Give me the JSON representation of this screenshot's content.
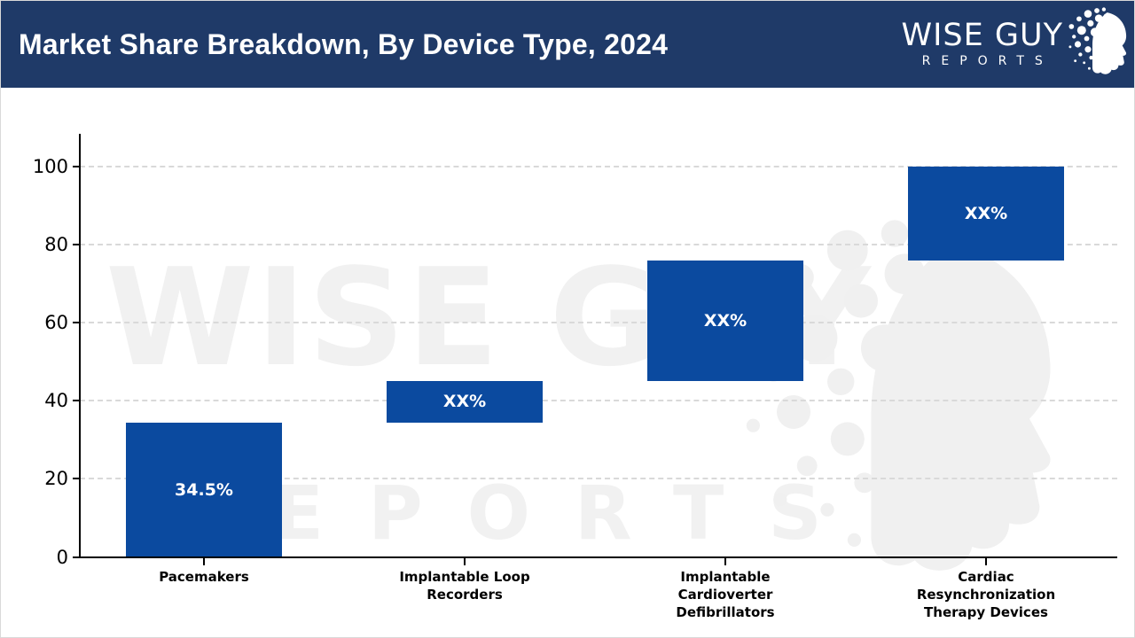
{
  "header": {
    "title": "Market Share Breakdown, By Device Type, 2024",
    "bg_color": "#1f3a68",
    "logo": {
      "line1": "WISE GUY",
      "line2": "REPORTS",
      "face_icon": "dotted-head-profile"
    }
  },
  "watermark": {
    "line1": "WISE GUY",
    "line2": "REPORTS",
    "face_icon": "dotted-head-profile"
  },
  "chart_data": {
    "type": "bar",
    "subtype": "floating-waterfall",
    "title": "Market Share Breakdown, By Device Type, 2024",
    "categories": [
      "Pacemakers",
      "Implantable Loop Recorders",
      "Implantable Cardioverter Defibrillators",
      "Cardiac Resynchronization Therapy Devices"
    ],
    "segments": [
      {
        "category": "Pacemakers",
        "start": 0,
        "end": 34.5,
        "label": "34.5%"
      },
      {
        "category": "Implantable Loop Recorders",
        "start": 34.5,
        "end": 45,
        "label": "XX%"
      },
      {
        "category": "Implantable Cardioverter Defibrillators",
        "start": 45,
        "end": 76,
        "label": "XX%"
      },
      {
        "category": "Cardiac Resynchronization Therapy Devices",
        "start": 76,
        "end": 100,
        "label": "XX%"
      }
    ],
    "ylim": [
      0,
      100
    ],
    "yticks": [
      0,
      20,
      40,
      60,
      80,
      100
    ],
    "xlabel": "",
    "ylabel": "",
    "grid": "horizontal-dashed",
    "legend_position": "none",
    "bar_color": "#0b4a9f",
    "bar_label_color": "#ffffff",
    "gridline_color": "#d9d9d9",
    "axis_color": "#000000"
  }
}
